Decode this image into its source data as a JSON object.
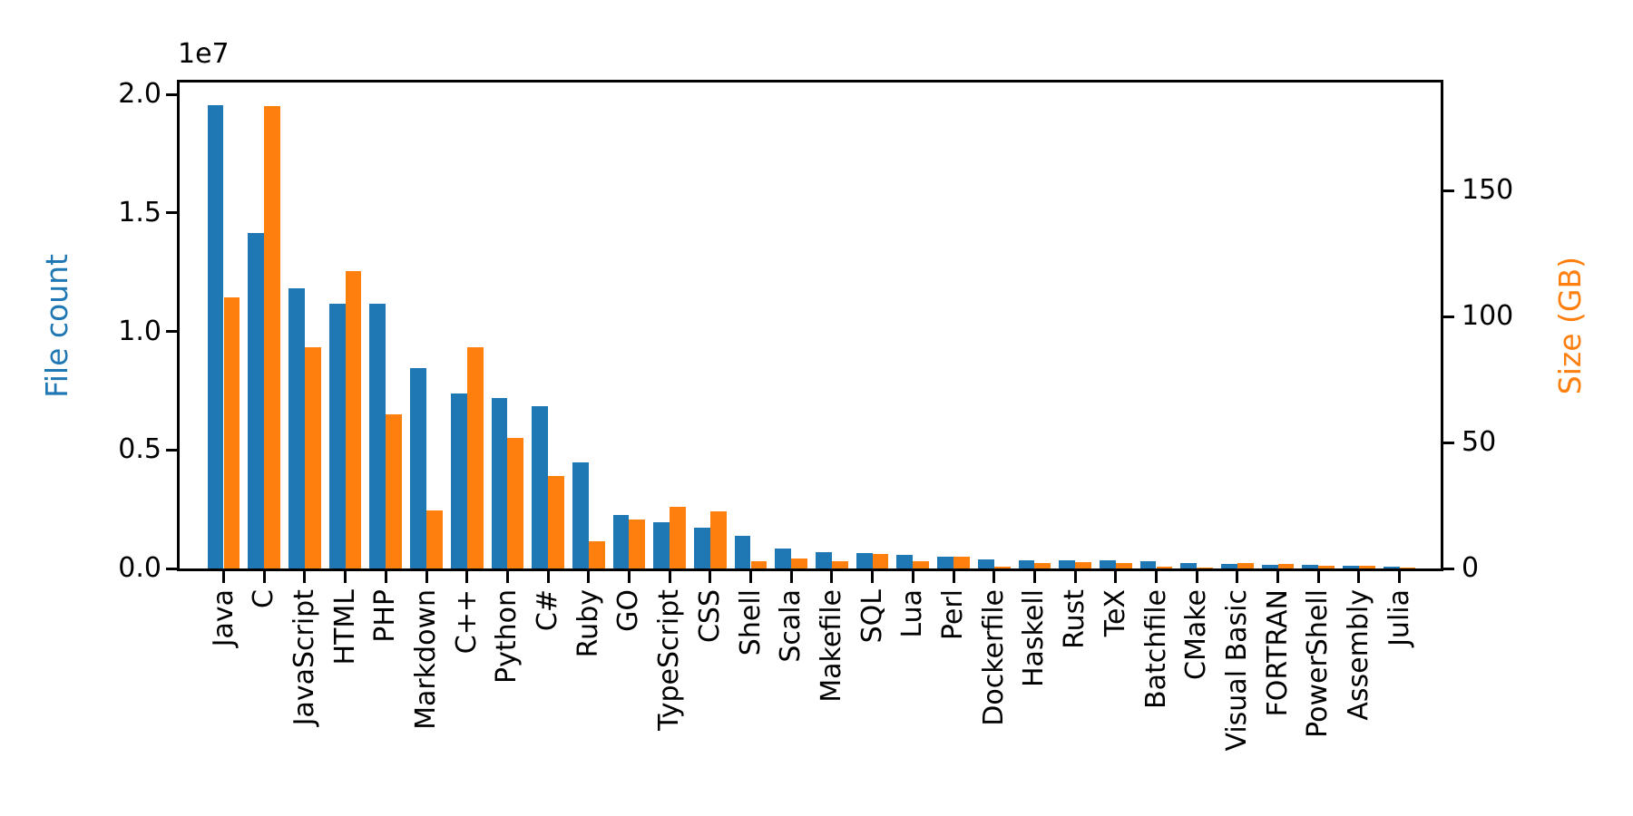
{
  "figure": {
    "background": "#ffffff",
    "blue": "#1f77b4",
    "orange": "#ff7f0e"
  },
  "chart_data": {
    "type": "bar",
    "title": "",
    "subtitle": "",
    "grid": false,
    "legend": null,
    "categories": [
      "Java",
      "C",
      "JavaScript",
      "HTML",
      "PHP",
      "Markdown",
      "C++",
      "Python",
      "C#",
      "Ruby",
      "GO",
      "TypeScript",
      "CSS",
      "Shell",
      "Scala",
      "Makefile",
      "SQL",
      "Lua",
      "Perl",
      "Dockerfile",
      "Haskell",
      "Rust",
      "TeX",
      "Batchfile",
      "CMake",
      "Visual Basic",
      "FORTRAN",
      "PowerShell",
      "Assembly",
      "Julia"
    ],
    "series": [
      {
        "name": "File count",
        "axis": "left",
        "color": "#1f77b4",
        "values": [
          19550000,
          14140000,
          11830000,
          11180000,
          11170000,
          8460000,
          7380000,
          7200000,
          6840000,
          4470000,
          2270000,
          1940000,
          1730000,
          1390000,
          840000,
          680000,
          660000,
          580000,
          500000,
          390000,
          350000,
          340000,
          330000,
          310000,
          220000,
          210000,
          160000,
          150000,
          100000,
          60000
        ]
      },
      {
        "name": "Size (GB)",
        "axis": "right",
        "color": "#ff7f0e",
        "values": [
          107.7,
          183.8,
          87.8,
          118.1,
          61.4,
          23.1,
          87.7,
          52.0,
          36.8,
          11.0,
          19.3,
          24.6,
          22.7,
          3.0,
          3.9,
          2.9,
          5.7,
          2.8,
          4.7,
          0.6,
          2.2,
          2.7,
          2.2,
          0.9,
          0.5,
          2.0,
          1.9,
          1.2,
          1.0,
          0.3
        ]
      }
    ],
    "left_axis": {
      "label": "File count",
      "color": "#1f77b4",
      "offset_label": "1e7",
      "ticks": [
        "0.0",
        "0.5",
        "1.0",
        "1.5",
        "2.0"
      ],
      "tick_values": [
        0,
        5000000,
        10000000,
        15000000,
        20000000
      ],
      "ylim": [
        0,
        20500000
      ]
    },
    "right_axis": {
      "label": "Size (GB)",
      "color": "#ff7f0e",
      "ticks": [
        "0",
        "50",
        "100",
        "150"
      ],
      "tick_values": [
        0,
        50,
        100,
        150
      ],
      "ylim": [
        0,
        193
      ]
    },
    "x_axis": {
      "label": "",
      "tick_label_rotation_deg": 90
    }
  }
}
